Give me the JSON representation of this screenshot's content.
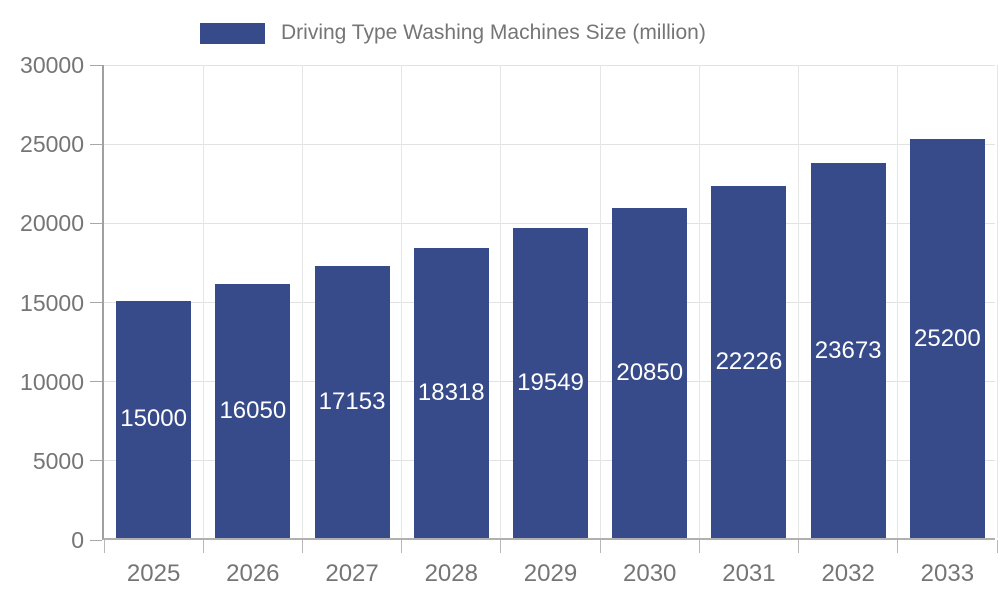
{
  "legend": {
    "label": "Driving Type Washing Machines Size (million)"
  },
  "colors": {
    "bar": "#374A8A",
    "grid_h": "#e2e2e2",
    "grid_v": "#e6e6e6",
    "axis": "#a0a0a0",
    "tick_label": "#757575",
    "value_label": "#ffffff",
    "background": "#ffffff"
  },
  "chart_data": {
    "type": "bar",
    "title": "Driving Type Washing Machines Size (million)",
    "categories": [
      "2025",
      "2026",
      "2027",
      "2028",
      "2029",
      "2030",
      "2031",
      "2032",
      "2033"
    ],
    "values": [
      15000,
      16050,
      17153,
      18318,
      19549,
      20850,
      22226,
      23673,
      25200
    ],
    "xlabel": "",
    "ylabel": "",
    "ylim": [
      0,
      30000
    ],
    "ytick_step": 5000,
    "ytick_labels": [
      "0",
      "5000",
      "10000",
      "15000",
      "20000",
      "25000",
      "30000"
    ],
    "grid": true,
    "legend_position": "top",
    "bar_labels_inside": true,
    "bar_label_position": "center"
  }
}
